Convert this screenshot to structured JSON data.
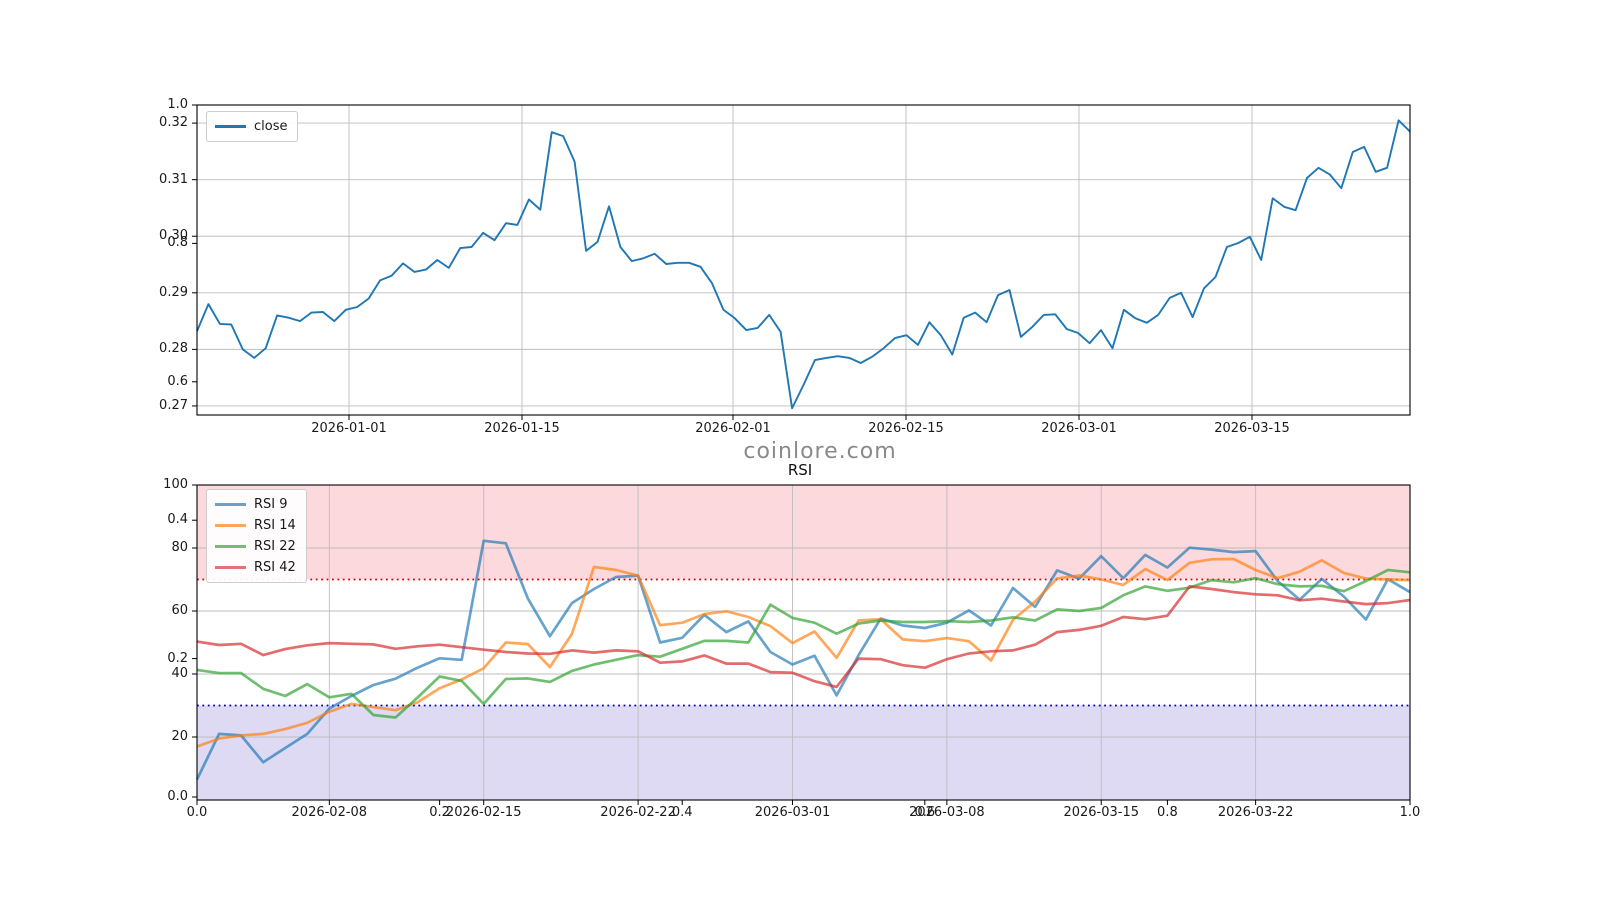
{
  "watermark": "coinlore.com",
  "overlay_axis": {
    "left_tick_labels": [
      "1.0",
      "0.8",
      "0.6",
      "0.4",
      "0.2",
      "0.0"
    ],
    "bottom_tick_labels": [
      "0.0",
      "0.2",
      "0.4",
      "0.6",
      "0.8",
      "1.0"
    ]
  },
  "chart_data": [
    {
      "type": "line",
      "title": "",
      "ylabel": "",
      "xlabel": "",
      "grid": true,
      "legend_position": "upper-left",
      "ylim": [
        0.2684,
        0.3232
      ],
      "ytick_labels": [
        "0.32",
        "0.31",
        "0.30",
        "0.29",
        "0.28",
        "0.27"
      ],
      "xtick_labels": [
        "2026-01-01",
        "2026-01-15",
        "2026-02-01",
        "2026-02-15",
        "2026-03-01",
        "2026-03-15"
      ],
      "series": [
        {
          "name": "close",
          "color": "#1f77b4",
          "values": [
            0.2832,
            0.288,
            0.2845,
            0.2844,
            0.28,
            0.2785,
            0.2802,
            0.286,
            0.2856,
            0.285,
            0.2865,
            0.2866,
            0.285,
            0.287,
            0.2875,
            0.289,
            0.2922,
            0.293,
            0.2952,
            0.2937,
            0.2941,
            0.2958,
            0.2944,
            0.2979,
            0.2981,
            0.3006,
            0.2993,
            0.3023,
            0.302,
            0.3065,
            0.3047,
            0.3184,
            0.3177,
            0.3132,
            0.2974,
            0.299,
            0.3053,
            0.2981,
            0.2956,
            0.2961,
            0.2969,
            0.2951,
            0.2953,
            0.2953,
            0.2946,
            0.2917,
            0.287,
            0.2855,
            0.2834,
            0.2838,
            0.2861,
            0.2831,
            0.2696,
            0.2737,
            0.2781,
            0.2785,
            0.2788,
            0.2785,
            0.2776,
            0.2787,
            0.2802,
            0.282,
            0.2825,
            0.2808,
            0.2848,
            0.2825,
            0.2791,
            0.2856,
            0.2865,
            0.2848,
            0.2896,
            0.2905,
            0.2822,
            0.284,
            0.2861,
            0.2862,
            0.2836,
            0.2829,
            0.2811,
            0.2834,
            0.2802,
            0.287,
            0.2855,
            0.2847,
            0.2861,
            0.2891,
            0.29,
            0.2857,
            0.2908,
            0.2928,
            0.2981,
            0.2988,
            0.2999,
            0.2958,
            0.3067,
            0.3052,
            0.3046,
            0.3103,
            0.3121,
            0.3109,
            0.3085,
            0.3149,
            0.3158,
            0.3114,
            0.3121,
            0.3205,
            0.3185
          ]
        }
      ]
    },
    {
      "type": "line",
      "title": "RSI",
      "grid": true,
      "legend_position": "upper-left",
      "ylim": [
        0,
        100
      ],
      "ytick_labels": [
        "100",
        "80",
        "60",
        "40",
        "20"
      ],
      "xtick_labels": [
        "2026-02-08",
        "2026-02-15",
        "2026-02-22",
        "2026-03-01",
        "2026-03-08",
        "2026-03-15",
        "2026-03-22"
      ],
      "overbought_level": 70,
      "oversold_level": 30,
      "overbought_band_color": "#fbd9dc",
      "oversold_band_color": "#dedaf3",
      "overbought_line_color": "#e00000",
      "oversold_line_color": "#0000cc",
      "series": [
        {
          "name": "RSI 9",
          "color": "#1f77b4",
          "values": [
            6.5,
            21,
            20.5,
            12,
            16.5,
            21,
            29,
            33,
            36.5,
            38.5,
            42,
            45,
            44.5,
            82.3,
            81.5,
            64,
            52,
            62.5,
            67,
            70.8,
            71.2,
            50,
            51.5,
            58.8,
            53.3,
            56.7,
            47,
            43,
            45.8,
            33.2,
            46,
            57.6,
            55.4,
            54.6,
            56.3,
            60.2,
            55.4,
            67.3,
            61.3,
            72.9,
            70.3,
            77.4,
            70.4,
            77.8,
            73.8,
            80.1,
            79.5,
            78.7,
            79.0,
            69.5,
            63.6,
            70.2,
            64.6,
            57.3,
            70.1,
            66.0
          ]
        },
        {
          "name": "RSI 14",
          "color": "#ff7f0e",
          "values": [
            17,
            19.5,
            20.5,
            21,
            22.5,
            24.5,
            28,
            30.5,
            29.5,
            28.5,
            31,
            35.5,
            38.3,
            41.8,
            50,
            49.5,
            42.2,
            52.7,
            74,
            73,
            71.2,
            55.5,
            56.3,
            59,
            59.9,
            58.1,
            55.2,
            49.8,
            53.5,
            45.1,
            57,
            57.4,
            51,
            50.4,
            51.4,
            50.4,
            44.3,
            57.2,
            63,
            70.3,
            71.3,
            70.0,
            68.3,
            73.3,
            69.8,
            75.3,
            76.4,
            76.5,
            73.0,
            70.4,
            72.5,
            76.1,
            72.1,
            70.3,
            70.0,
            69.8
          ]
        },
        {
          "name": "RSI 22",
          "color": "#2ca02c",
          "values": [
            41.3,
            40.3,
            40.3,
            35.3,
            33,
            36.8,
            32.6,
            33.7,
            27,
            26.2,
            32.5,
            39.2,
            37.8,
            30.5,
            38.4,
            38.6,
            37.5,
            41,
            43,
            44.5,
            46,
            45.5,
            48,
            50.5,
            50.5,
            50,
            62,
            57.8,
            56.3,
            52.8,
            56,
            57,
            56.5,
            56.5,
            56.8,
            56.5,
            57,
            58,
            57,
            60.5,
            60,
            61,
            65,
            67.8,
            66.4,
            67.4,
            69.8,
            69.1,
            70.4,
            68.5,
            67.8,
            68,
            66.3,
            69.5,
            73,
            72.3
          ]
        },
        {
          "name": "RSI 42",
          "color": "#d62728",
          "values": [
            50.3,
            49.2,
            49.6,
            46.0,
            47.9,
            49.1,
            49.8,
            49.6,
            49.4,
            48.0,
            48.8,
            49.3,
            48.5,
            47.7,
            47.0,
            46.5,
            46.4,
            47.5,
            46.8,
            47.5,
            47.2,
            43.6,
            44.0,
            45.9,
            43.3,
            43.3,
            40.6,
            40.4,
            37.7,
            35.9,
            44.9,
            44.7,
            42.8,
            42.0,
            44.7,
            46.5,
            47.2,
            47.5,
            49.3,
            53.3,
            54.0,
            55.3,
            58.1,
            57.4,
            58.5,
            67.8,
            67.0,
            66.0,
            65.3,
            65.0,
            63.4,
            63.9,
            63.0,
            62.2,
            62.5,
            63.5
          ]
        }
      ]
    }
  ]
}
